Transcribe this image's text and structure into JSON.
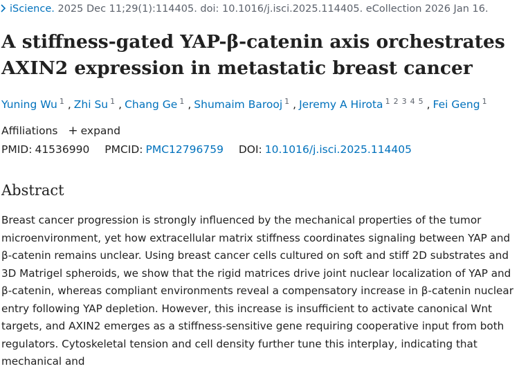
{
  "citation": {
    "journal": "iScience.",
    "details": "2025 Dec 11;29(1):114405. doi: 10.1016/j.isci.2025.114405. eCollection 2026 Jan 16."
  },
  "title": "A stiffness-gated YAP-β-catenin axis orchestrates AXIN2 expression in metastatic breast cancer",
  "authors": [
    {
      "name": "Yuning Wu",
      "sups": [
        "1"
      ]
    },
    {
      "name": "Zhi Su",
      "sups": [
        "1"
      ]
    },
    {
      "name": "Chang Ge",
      "sups": [
        "1"
      ]
    },
    {
      "name": "Shumaim Barooj",
      "sups": [
        "1"
      ]
    },
    {
      "name": "Jeremy A Hirota",
      "sups": [
        "1",
        "2",
        "3",
        "4",
        "5"
      ]
    },
    {
      "name": "Fei Geng",
      "sups": [
        "1"
      ]
    }
  ],
  "affiliations": {
    "label": "Affiliations",
    "expand": "expand"
  },
  "ids": {
    "pmid_label": "PMID:",
    "pmid": "41536990",
    "pmcid_label": "PMCID:",
    "pmcid": "PMC12796759",
    "doi_label": "DOI:",
    "doi": "10.1016/j.isci.2025.114405"
  },
  "abstract": {
    "heading": "Abstract",
    "text": "Breast cancer progression is strongly influenced by the mechanical properties of the tumor microenvironment, yet how extracellular matrix stiffness coordinates signaling between YAP and β-catenin remains unclear. Using breast cancer cells cultured on soft and stiff 2D substrates and 3D Matrigel spheroids, we show that the rigid matrices drive joint nuclear localization of YAP and β-catenin, whereas compliant environments reveal a compensatory increase in β-catenin nuclear entry following YAP depletion. However, this increase is insufficient to activate canonical Wnt targets, and AXIN2 emerges as a stiffness-sensitive gene requiring cooperative input from both regulators. Cytoskeletal tension and cell density further tune this interplay, indicating that mechanical and"
  },
  "colors": {
    "link": "#0071bc",
    "text": "#212121",
    "muted": "#5b616b"
  }
}
